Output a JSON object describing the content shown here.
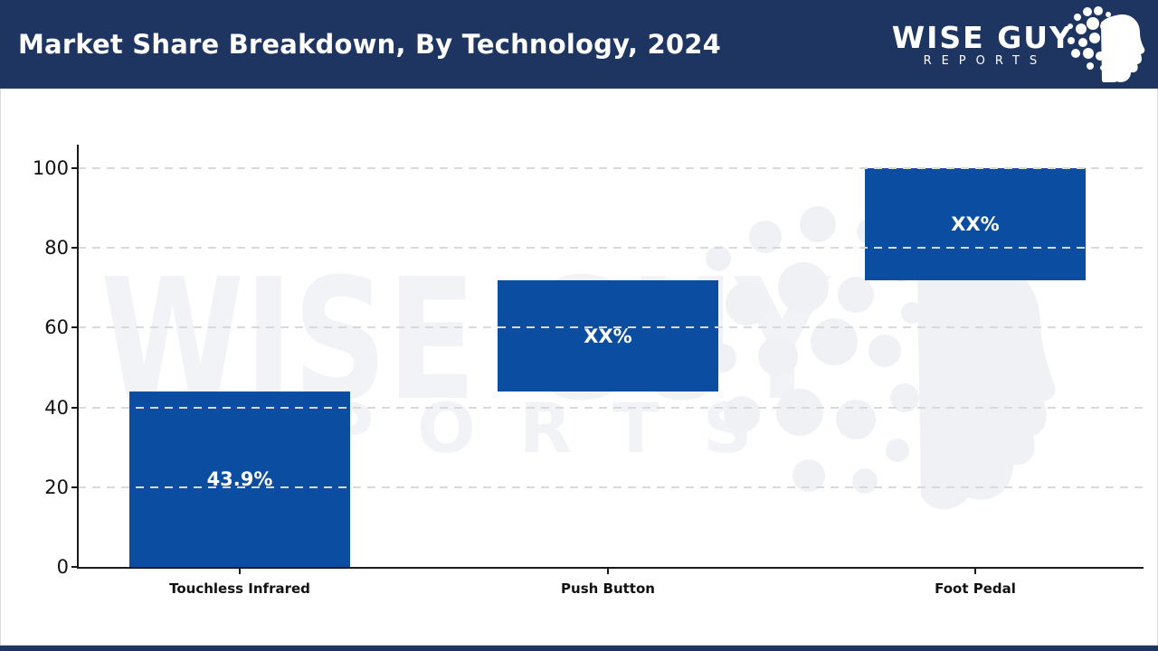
{
  "header": {
    "title": "Market Share Breakdown, By Technology, 2024",
    "logo": {
      "line1": "WISE GUY",
      "line2": "REPORTS"
    }
  },
  "watermark": {
    "line1": "WISE GUY",
    "line2": "REPORTS"
  },
  "chart_data": {
    "type": "bar",
    "variant": "waterfall-stacked",
    "title": "Market Share Breakdown, By Technology, 2024",
    "categories": [
      "Touchless Infrared",
      "Push Button",
      "Foot Pedal"
    ],
    "segments": [
      {
        "category": "Touchless Infrared",
        "label": "43.9%",
        "start": 0,
        "end": 43.9
      },
      {
        "category": "Push Button",
        "label": "XX%",
        "start": 43.9,
        "end": 71.9
      },
      {
        "category": "Foot Pedal",
        "label": "XX%",
        "start": 71.9,
        "end": 100
      }
    ],
    "xlabel": "",
    "ylabel": "",
    "y_ticks": [
      0,
      20,
      40,
      60,
      80,
      100
    ],
    "ylim": [
      0,
      106
    ],
    "grid": "horizontal-dashed",
    "legend": "none",
    "colors": {
      "bar": "#0b4da1",
      "bar_label": "#ffffff",
      "grid": "#d9d9d9",
      "axis": "#1a1a1a",
      "header_bg": "#1e3562",
      "watermark": "#f2f3f6"
    }
  }
}
